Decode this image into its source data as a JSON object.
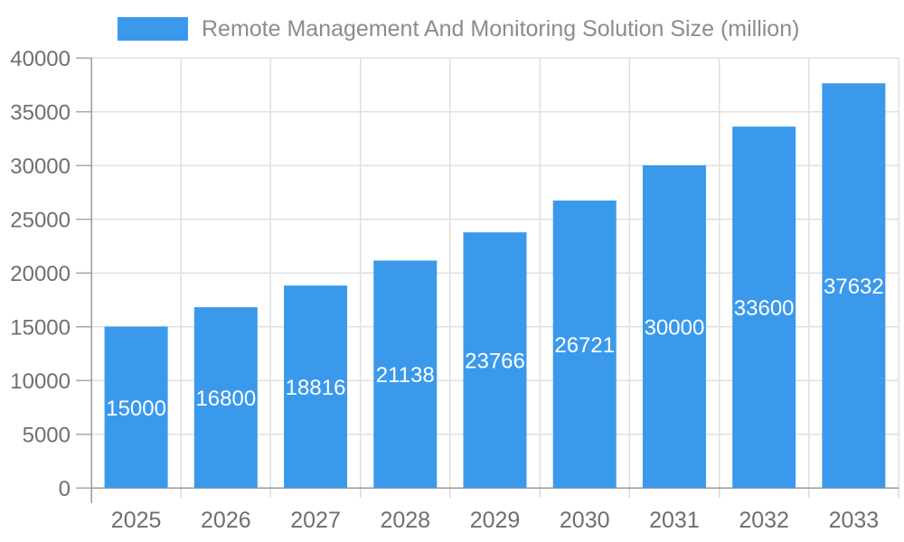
{
  "chart_data": {
    "type": "bar",
    "title": "Remote Management And Monitoring Solution Size (million)",
    "categories": [
      "2025",
      "2026",
      "2027",
      "2028",
      "2029",
      "2030",
      "2031",
      "2032",
      "2033"
    ],
    "values": [
      15000,
      16800,
      18816,
      21138,
      23766,
      26721,
      30000,
      33600,
      37632
    ],
    "series": [
      {
        "name": "Remote Management And Monitoring Solution Size (million)",
        "values": [
          15000,
          16800,
          18816,
          21138,
          23766,
          26721,
          30000,
          33600,
          37632
        ]
      }
    ],
    "xlabel": "",
    "ylabel": "",
    "ylim": [
      0,
      40000
    ],
    "ytick_step": 5000,
    "yticks": [
      0,
      5000,
      10000,
      15000,
      20000,
      25000,
      30000,
      35000,
      40000
    ],
    "grid": true,
    "legend_position": "top",
    "bar_color": "#3B99EB",
    "bar_label_color": "#FFFFFF"
  },
  "style": {
    "background": "#FFFFFF",
    "grid_color": "#E0E0E0",
    "axis_color": "#9A9A9A",
    "y_tick_color": "#A8A8A8",
    "x_tick_color": "#D9D9D9",
    "tick_label_color": "#6F6F6F",
    "title_color": "#8C8C8C"
  }
}
